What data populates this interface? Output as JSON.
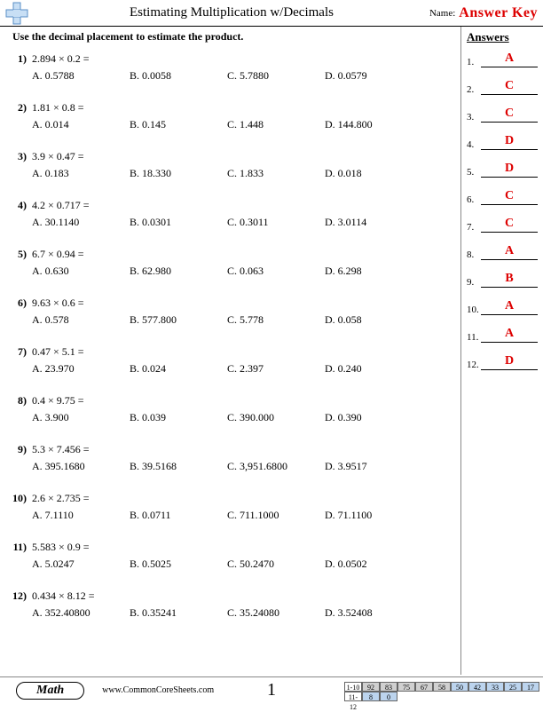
{
  "header": {
    "title": "Estimating Multiplication w/Decimals",
    "name_label": "Name:",
    "name_value": "Answer Key"
  },
  "instruction": "Use the decimal placement to estimate the product.",
  "problems": [
    {
      "n": "1)",
      "q": "2.894 × 0.2 =",
      "a": "A. 0.5788",
      "b": "B. 0.0058",
      "c": "C. 5.7880",
      "d": "D. 0.0579"
    },
    {
      "n": "2)",
      "q": "1.81 × 0.8 =",
      "a": "A. 0.014",
      "b": "B. 0.145",
      "c": "C. 1.448",
      "d": "D. 144.800"
    },
    {
      "n": "3)",
      "q": "3.9 × 0.47 =",
      "a": "A. 0.183",
      "b": "B. 18.330",
      "c": "C. 1.833",
      "d": "D. 0.018"
    },
    {
      "n": "4)",
      "q": "4.2 × 0.717 =",
      "a": "A. 30.1140",
      "b": "B. 0.0301",
      "c": "C. 0.3011",
      "d": "D. 3.0114"
    },
    {
      "n": "5)",
      "q": "6.7 × 0.94 =",
      "a": "A. 0.630",
      "b": "B. 62.980",
      "c": "C. 0.063",
      "d": "D. 6.298"
    },
    {
      "n": "6)",
      "q": "9.63 × 0.6 =",
      "a": "A. 0.578",
      "b": "B. 577.800",
      "c": "C. 5.778",
      "d": "D. 0.058"
    },
    {
      "n": "7)",
      "q": "0.47 × 5.1 =",
      "a": "A. 23.970",
      "b": "B. 0.024",
      "c": "C. 2.397",
      "d": "D. 0.240"
    },
    {
      "n": "8)",
      "q": "0.4 × 9.75 =",
      "a": "A. 3.900",
      "b": "B. 0.039",
      "c": "C. 390.000",
      "d": "D. 0.390"
    },
    {
      "n": "9)",
      "q": "5.3 × 7.456 =",
      "a": "A. 395.1680",
      "b": "B. 39.5168",
      "c": "C. 3,951.6800",
      "d": "D. 3.9517"
    },
    {
      "n": "10)",
      "q": "2.6 × 2.735 =",
      "a": "A. 7.1110",
      "b": "B. 0.0711",
      "c": "C. 711.1000",
      "d": "D. 71.1100"
    },
    {
      "n": "11)",
      "q": "5.583 × 0.9 =",
      "a": "A. 5.0247",
      "b": "B. 0.5025",
      "c": "C. 50.2470",
      "d": "D. 0.0502"
    },
    {
      "n": "12)",
      "q": "0.434 × 8.12 =",
      "a": "A. 352.40800",
      "b": "B. 0.35241",
      "c": "C. 35.24080",
      "d": "D. 3.52408"
    }
  ],
  "answers_heading": "Answers",
  "answers": [
    {
      "n": "1.",
      "v": "A"
    },
    {
      "n": "2.",
      "v": "C"
    },
    {
      "n": "3.",
      "v": "C"
    },
    {
      "n": "4.",
      "v": "D"
    },
    {
      "n": "5.",
      "v": "D"
    },
    {
      "n": "6.",
      "v": "C"
    },
    {
      "n": "7.",
      "v": "C"
    },
    {
      "n": "8.",
      "v": "A"
    },
    {
      "n": "9.",
      "v": "B"
    },
    {
      "n": "10.",
      "v": "A"
    },
    {
      "n": "11.",
      "v": "A"
    },
    {
      "n": "12.",
      "v": "D"
    }
  ],
  "footer": {
    "math": "Math",
    "site": "www.CommonCoreSheets.com",
    "page": "1",
    "grid": {
      "r1_label": "1-10",
      "r1": [
        "92",
        "83",
        "75",
        "67",
        "58",
        "50",
        "42",
        "33",
        "25",
        "17"
      ],
      "r2_label": "11-12",
      "r2": [
        "8",
        "0"
      ]
    }
  }
}
